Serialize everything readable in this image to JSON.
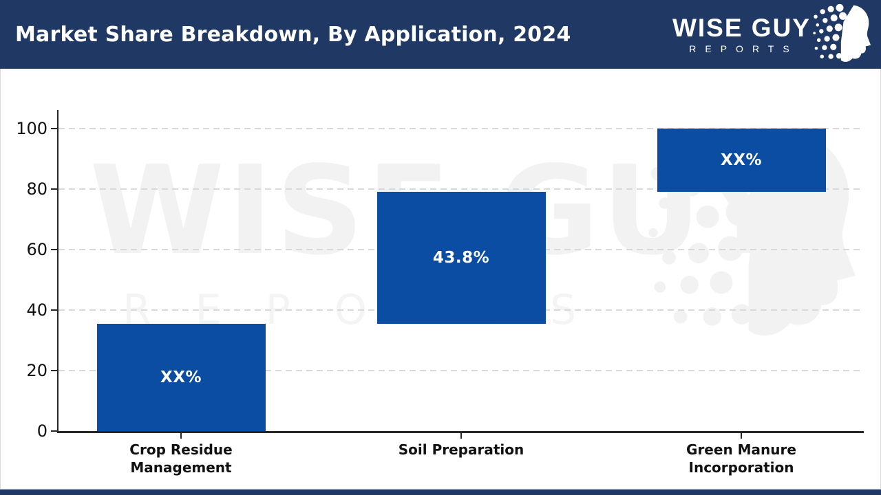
{
  "header": {
    "title": "Market Share Breakdown, By Application, 2024",
    "background_color": "#203864",
    "logo": {
      "line1": "WISE GUY",
      "line2": "REPORTS"
    }
  },
  "watermark": {
    "line1": "WISE GUY",
    "line2": "REPORTS"
  },
  "footer": {
    "bar_color": "#203864"
  },
  "chart_data": {
    "type": "bar",
    "subtype": "stacked-waterfall-segments",
    "title": "Market Share Breakdown, By Application, 2024",
    "categories": [
      "Crop Residue Management",
      "Soil Preparation",
      "Green Manure Incorporation"
    ],
    "segments": [
      {
        "category": "Crop Residue Management",
        "start": 0,
        "end": 35.4,
        "value": 35.4,
        "label": "XX%"
      },
      {
        "category": "Soil Preparation",
        "start": 35.4,
        "end": 79.2,
        "value": 43.8,
        "label": "43.8%"
      },
      {
        "category": "Green Manure Incorporation",
        "start": 79.2,
        "end": 100,
        "value": 20.8,
        "label": "XX%"
      }
    ],
    "xlabel": "",
    "ylabel": "",
    "yticks": [
      0,
      20,
      40,
      60,
      80,
      100
    ],
    "ylim": [
      0,
      106.2
    ],
    "grid": "horizontal-dashed",
    "legend": "none",
    "bar_color": "#0b4da2",
    "bar_label_color": "#ffffff",
    "axis_color": "#262626",
    "gridline_color": "#d9d9d9"
  }
}
